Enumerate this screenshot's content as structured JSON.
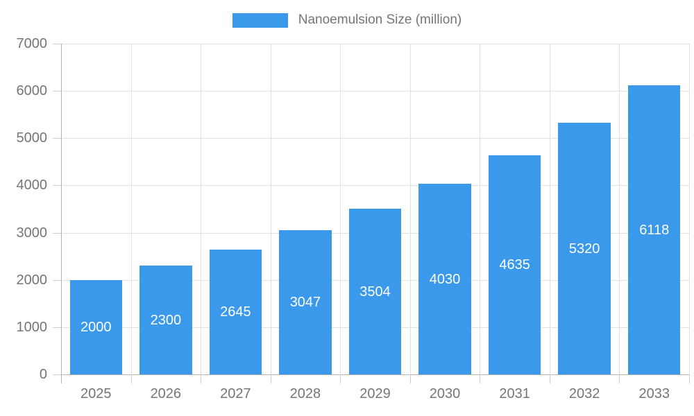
{
  "legend": {
    "label": "Nanoemulsion Size (million)"
  },
  "colors": {
    "bar": "#3B99EC",
    "grid": "#e0e0e0",
    "axis_line": "#b3b3b3",
    "tick": "#cccccc",
    "axis_text": "#757575",
    "value_label": "#ffffff",
    "background": "#ffffff"
  },
  "chart_data": {
    "type": "bar",
    "categories": [
      "2025",
      "2026",
      "2027",
      "2028",
      "2029",
      "2030",
      "2031",
      "2032",
      "2033"
    ],
    "values": [
      2000,
      2300,
      2645,
      3047,
      3504,
      4030,
      4635,
      5320,
      6118
    ],
    "series_name": "Nanoemulsion Size (million)",
    "title": "",
    "xlabel": "",
    "ylabel": "",
    "ylim": [
      0,
      7000
    ],
    "ytick_step": 1000,
    "ytick_labels": [
      "0",
      "1000",
      "2000",
      "3000",
      "4000",
      "5000",
      "6000",
      "7000"
    ],
    "grid": true,
    "legend_position": "top-center",
    "value_labels": "inside-center",
    "bar_color": "#3B99EC"
  }
}
